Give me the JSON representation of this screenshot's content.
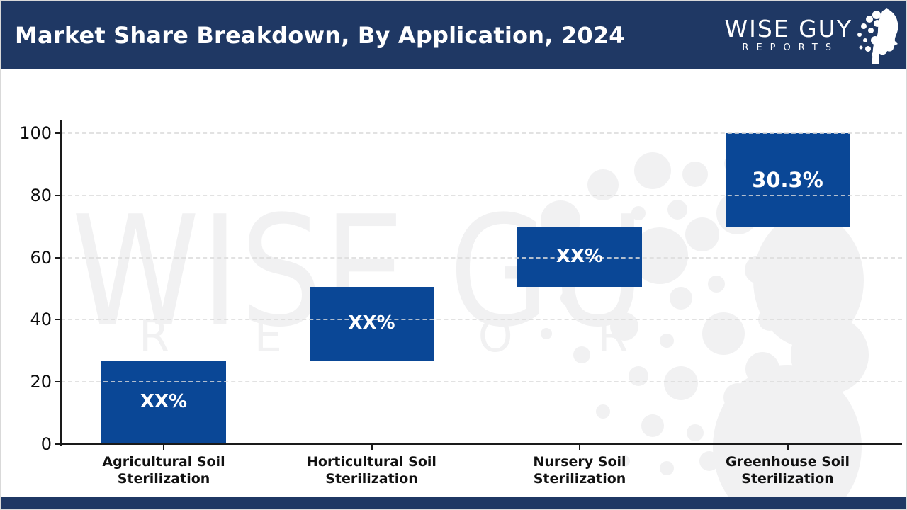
{
  "header": {
    "title": "Market Share Breakdown, By Application, 2024",
    "logo": {
      "line1": "WISE GUY",
      "line2": "REPORTS"
    }
  },
  "watermark": {
    "line1": "WISE GU",
    "line2": "R E P O R T S"
  },
  "chart_data": {
    "type": "bar",
    "variant": "floating-segment",
    "title": "Market Share Breakdown, By Application, 2024",
    "categories": [
      "Agricultural Soil Sterilization",
      "Horticultural Soil Sterilization",
      "Nursery Soil Sterilization",
      "Greenhouse Soil Sterilization"
    ],
    "bars": [
      {
        "category": "Agricultural Soil Sterilization",
        "start": 0,
        "end": 26.7,
        "label": "XX%"
      },
      {
        "category": "Horticultural Soil Sterilization",
        "start": 26.7,
        "end": 50.6,
        "label": "XX%"
      },
      {
        "category": "Nursery Soil Sterilization",
        "start": 50.6,
        "end": 69.7,
        "label": "XX%"
      },
      {
        "category": "Greenhouse Soil Sterilization",
        "start": 69.7,
        "end": 100,
        "label": "30.3%"
      }
    ],
    "yticks": [
      0,
      20,
      40,
      60,
      80,
      100
    ],
    "ylim": [
      0,
      104
    ],
    "xlabel": "",
    "ylabel": "",
    "grid": "horizontal-dashed",
    "legend": "none"
  },
  "theme": {
    "header_bg": "#1f3864",
    "bar_color": "#0a4796",
    "bar_label_color": "#ffffff",
    "grid_color": "#dcdcdc",
    "axis_color": "#1a1a1a",
    "watermark_color": "#f1f1f2",
    "title_color": "#ffffff"
  }
}
